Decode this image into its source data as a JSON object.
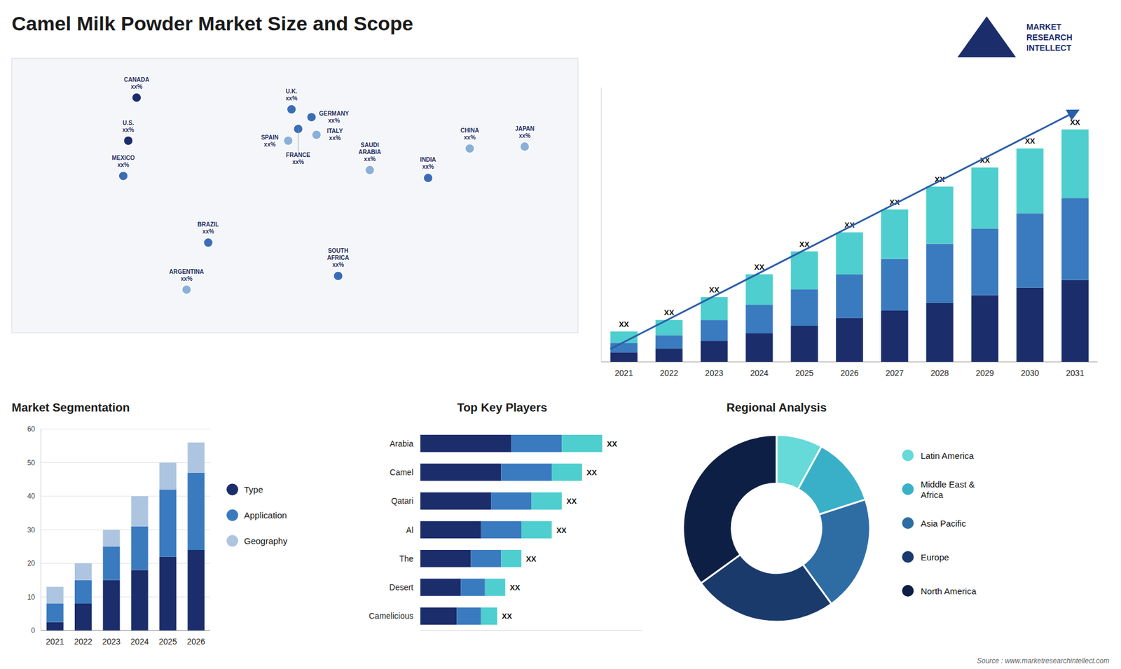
{
  "chart_data": [
    {
      "type": "bar",
      "title": "Camel Milk Powder Market Size and Scope",
      "stacked": true,
      "categories": [
        "2021",
        "2022",
        "2023",
        "2024",
        "2025",
        "2026",
        "2027",
        "2028",
        "2029",
        "2030",
        "2031"
      ],
      "series": [
        {
          "color": "#1b2d6b",
          "values": [
            2.5,
            3.5,
            5.5,
            7.5,
            9.5,
            11.5,
            13.5,
            15.5,
            17.5,
            19.5,
            21.5
          ]
        },
        {
          "color": "#3a7abf",
          "values": [
            2.5,
            3.5,
            5.5,
            7.5,
            9.5,
            11.5,
            13.5,
            15.5,
            17.5,
            19.5,
            21.5
          ]
        },
        {
          "color": "#4ecece",
          "values": [
            3.0,
            4.0,
            6.0,
            8.0,
            10.0,
            11.0,
            13.0,
            15.0,
            16.0,
            17.0,
            18.0
          ]
        }
      ],
      "ylim": [
        0,
        71.98
      ],
      "tick_labels": "x",
      "value_labels": [
        "XX",
        "XX",
        "XX",
        "XX",
        "XX",
        "XX",
        "XX",
        "XX",
        "XX",
        "XX",
        "XX"
      ],
      "annotations": [
        "Source : www.marketresearchintellect.com",
        "MARKET\nRESEARCH\nINTELLECT"
      ]
    },
    {
      "type": "bar",
      "title": "Market Segmentation",
      "stacked": true,
      "categories": [
        "2021",
        "2022",
        "2023",
        "2024",
        "2025",
        "2026"
      ],
      "series": [
        {
          "name": "Type",
          "color": "#1b2d6b",
          "values": [
            2.5,
            8.0,
            15.0,
            18.0,
            22.0,
            24.0
          ]
        },
        {
          "name": "Application",
          "color": "#3a7abf",
          "values": [
            5.5,
            7.0,
            10.0,
            13.0,
            20.0,
            23.0
          ]
        },
        {
          "name": "Geography",
          "color": "#adc5e0",
          "values": [
            5.0,
            5.0,
            5.0,
            9.0,
            8.0,
            9.0
          ]
        }
      ],
      "ylim": [
        0,
        60
      ],
      "yticks": [
        0,
        10,
        20,
        30,
        40,
        50,
        60
      ],
      "grid": true,
      "legend": "right"
    },
    {
      "type": "bar",
      "title": "Top Key Players",
      "orientation": "horizontal",
      "stacked": true,
      "categories": [
        "Arabia",
        "Camel",
        "Qatari",
        "Al",
        "The",
        "Desert",
        "Camelicious"
      ],
      "series": [
        {
          "color": "#1b2d6b",
          "values": [
            4.5,
            4.0,
            3.5,
            3.0,
            2.5,
            2.0,
            1.8
          ]
        },
        {
          "color": "#3a7abf",
          "values": [
            2.5,
            2.5,
            2.0,
            2.0,
            1.5,
            1.2,
            1.2
          ]
        },
        {
          "color": "#4ecece",
          "values": [
            2.0,
            1.5,
            1.5,
            1.5,
            1.0,
            1.0,
            0.8
          ]
        }
      ],
      "xlim": [
        0,
        10.98
      ],
      "tick_labels": "y",
      "value_labels": [
        "XX",
        "XX",
        "XX",
        "XX",
        "XX",
        "XX",
        "XX"
      ]
    },
    {
      "type": "donut",
      "title": "Regional Analysis",
      "categories": [
        "Latin America",
        "Middle East &\nAfrica",
        "Asia Pacific",
        "Europe",
        "North America"
      ],
      "values": [
        8,
        12,
        20,
        25,
        35
      ],
      "colors": [
        "#66d9d9",
        "#3ab0c8",
        "#2e6da4",
        "#1a3a6b",
        "#0d1f45"
      ],
      "legend": "right"
    },
    {
      "type": "map",
      "categories": [
        "CANADA\nxx%",
        "U.S.\nxx%",
        "MEXICO\nxx%",
        "BRAZIL\nxx%",
        "ARGENTINA\nxx%",
        "U.K.\nxx%",
        "FRANCE\nxx%",
        "GERMANY\nxx%",
        "SPAIN\nxx%",
        "ITALY\nxx%",
        "SOUTH\nAFRICA\nxx%",
        "SAUDI\nARABIA\nxx%",
        "INDIA\nxx%",
        "CHINA\nxx%",
        "JAPAN\nxx%"
      ],
      "x": [
        -95,
        -100,
        -103,
        -52,
        -65,
        -2,
        2,
        10,
        -4,
        13,
        26,
        45,
        80,
        105,
        138
      ],
      "values": [
        62,
        40,
        22,
        -12,
        -36,
        56,
        46,
        52,
        40,
        43,
        -29,
        25,
        21,
        36,
        37
      ],
      "colors": [
        "#1b2d6b",
        "#1b2d6b",
        "#3a6db5",
        "#3a6db5",
        "#8ab0d8",
        "#3a6db5",
        "#3a6db5",
        "#3a6db5",
        "#8ab0d8",
        "#8ab0d8",
        "#3a6db5",
        "#8ab0d8",
        "#3a6db5",
        "#8ab0d8",
        "#8ab0d8"
      ],
      "xlim": [
        -170,
        170
      ],
      "ylim": [
        -58,
        82
      ],
      "tick_labels": false
    }
  ]
}
